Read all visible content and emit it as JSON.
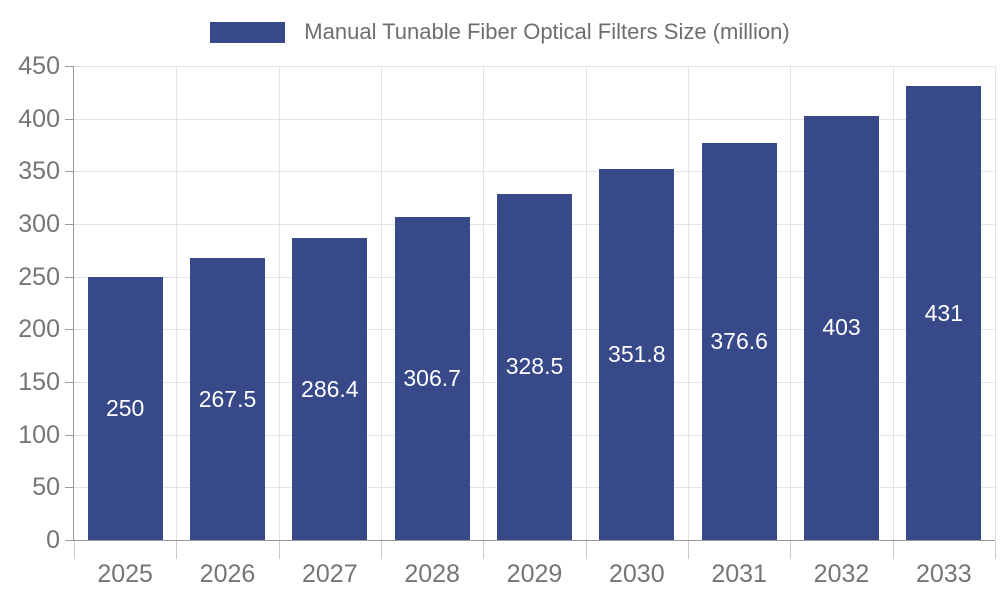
{
  "legend": {
    "label": "Manual Tunable Fiber Optical Filters Size (million)"
  },
  "chart_data": {
    "type": "bar",
    "title": "Manual Tunable Fiber Optical Filters Size (million)",
    "categories": [
      "2025",
      "2026",
      "2027",
      "2028",
      "2029",
      "2030",
      "2031",
      "2032",
      "2033"
    ],
    "values": [
      250,
      267.5,
      286.4,
      306.7,
      328.5,
      351.8,
      376.6,
      403,
      431
    ],
    "value_labels": [
      "250",
      "267.5",
      "286.4",
      "306.7",
      "328.5",
      "351.8",
      "376.6",
      "403",
      "431"
    ],
    "xlabel": "",
    "ylabel": "",
    "ylim": [
      0,
      450
    ],
    "yticks": [
      0,
      50,
      100,
      150,
      200,
      250,
      300,
      350,
      400,
      450
    ],
    "grid": true,
    "legend_position": "top-center",
    "bar_label_position": "inside-center",
    "colors": {
      "bar": "#38498A",
      "bar_label": "#FFFFFF",
      "axis_text": "#757575",
      "title_text": "#6E6E6E",
      "grid_line": "#E4E4E4",
      "axis_line": "#999999",
      "boundary_tick": "#CCCCCC",
      "background": "#FFFFFF"
    }
  }
}
